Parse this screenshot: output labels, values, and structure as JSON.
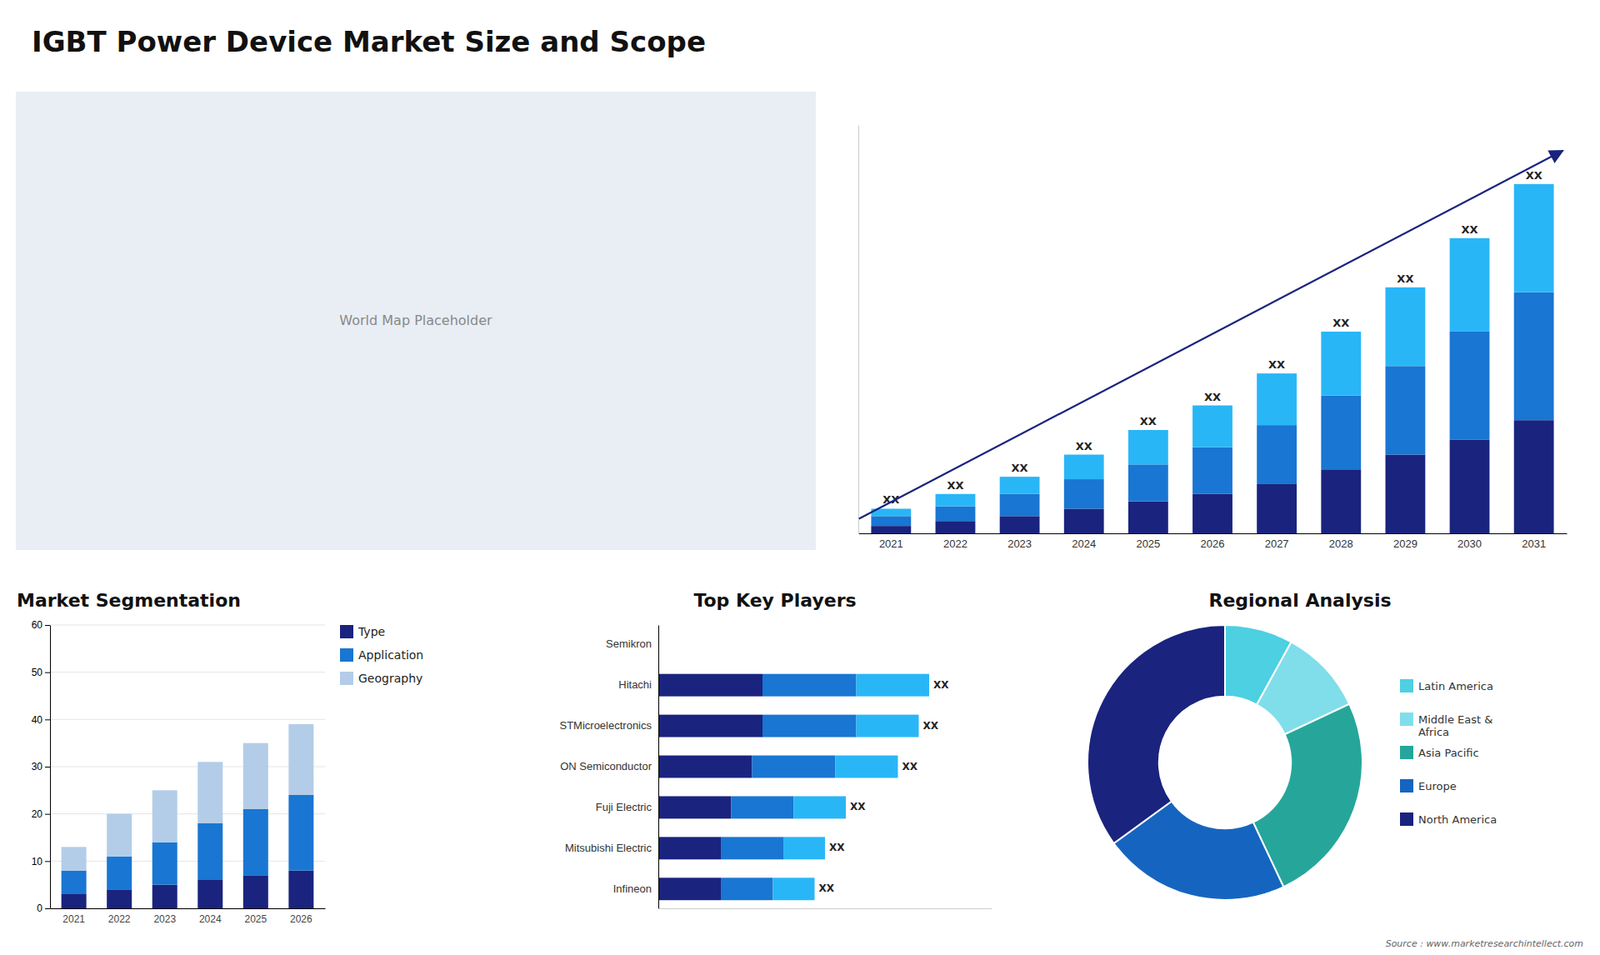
{
  "chart_data": [
    {
      "type": "bar",
      "title": "IGBT Power Device Market Size and Scope",
      "stacked": true,
      "categories": [
        "2021",
        "2022",
        "2023",
        "2024",
        "2025",
        "2026",
        "2027",
        "2028",
        "2029",
        "2030",
        "2031"
      ],
      "series": [
        {
          "color": "#1a237e",
          "values": [
            1.5,
            2.5,
            3.5,
            5,
            6.5,
            8,
            10,
            13,
            16,
            19,
            23
          ]
        },
        {
          "color": "#1976d2",
          "values": [
            2,
            3,
            4.5,
            6,
            7.5,
            9.5,
            12,
            15,
            18,
            22,
            26
          ]
        },
        {
          "color": "#29b6f6",
          "values": [
            1.5,
            2.5,
            3.5,
            5,
            7,
            8.5,
            10.5,
            13,
            16,
            19,
            22
          ]
        }
      ],
      "ylim": [
        0,
        83
      ],
      "tick_labels": "x",
      "annotations": [
        "XX",
        "XX",
        "XX",
        "XX",
        "XX",
        "XX",
        "XX",
        "XX",
        "XX",
        "XX",
        "XX"
      ]
    },
    {
      "type": "bar",
      "title": "Market Segmentation",
      "stacked": true,
      "categories": [
        "2021",
        "2022",
        "2023",
        "2024",
        "2025",
        "2026"
      ],
      "series": [
        {
          "name": "Type",
          "color": "#1a237e",
          "values": [
            3,
            4,
            5,
            6,
            7,
            8
          ]
        },
        {
          "name": "Application",
          "color": "#1976d2",
          "values": [
            5,
            7,
            9,
            12,
            14,
            16
          ]
        },
        {
          "name": "Geography",
          "color": "#b3cde8",
          "values": [
            5,
            9,
            11,
            13,
            14,
            15
          ]
        }
      ],
      "ylim": [
        0,
        60
      ],
      "yticks": [
        0,
        10,
        20,
        30,
        40,
        50,
        60
      ],
      "grid": true,
      "legend": "right"
    },
    {
      "type": "bar",
      "title": "Top Key Players",
      "stacked": true,
      "orientation": "horizontal",
      "categories": [
        "Semikron",
        "Hitachi",
        "STMicroelectronics",
        "ON Semiconductor",
        "Fuji Electric",
        "Mitsubishi Electric",
        "Infineon"
      ],
      "series": [
        {
          "color": "#1a237e",
          "values": [
            0,
            5,
            5,
            4.5,
            3.5,
            3,
            3
          ]
        },
        {
          "color": "#1976d2",
          "values": [
            0,
            4.5,
            4.5,
            4,
            3,
            3,
            2.5
          ]
        },
        {
          "color": "#29b6f6",
          "values": [
            0,
            3.5,
            3,
            3,
            2.5,
            2,
            2
          ]
        }
      ],
      "xlim": [
        0,
        16
      ],
      "tick_labels": "y",
      "annotations": [
        null,
        "XX",
        "XX",
        "XX",
        "XX",
        "XX",
        "XX"
      ]
    },
    {
      "type": "pie",
      "title": "Regional Analysis",
      "categories": [
        "Latin America",
        "Middle East &\nAfrica",
        "Asia Pacific",
        "Europe",
        "North America"
      ],
      "values": [
        8,
        10,
        25,
        22,
        35
      ],
      "colors": [
        "#4dd0e1",
        "#80deea",
        "#26a69a",
        "#1565c0",
        "#1a237e"
      ],
      "legend": "right",
      "annotations": [
        "Source : www.marketresearchintellect.com"
      ]
    },
    {
      "type": "map",
      "annotations": [
        "World Map Placeholder"
      ]
    }
  ]
}
